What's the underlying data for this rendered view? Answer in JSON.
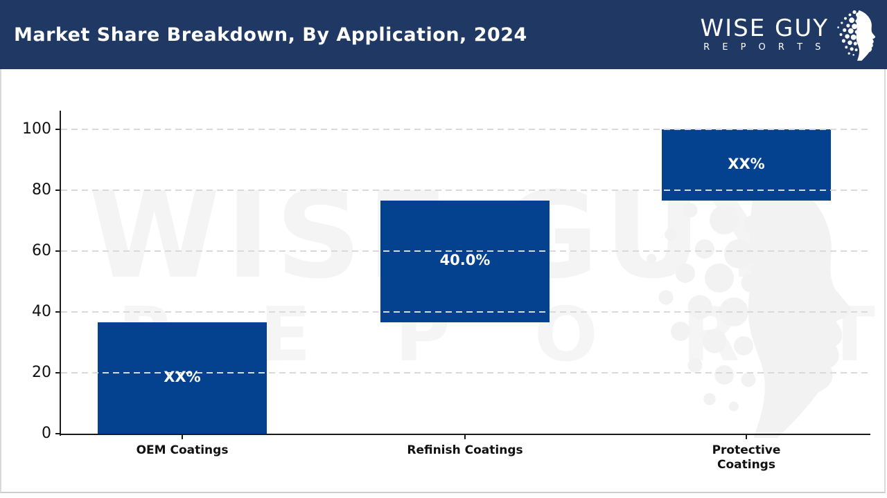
{
  "header": {
    "title": "Market Share Breakdown, By Application, 2024"
  },
  "logo": {
    "line1": "WISE GUY",
    "line2": "R E P O R T S"
  },
  "watermark": {
    "line1": "WISE GUY",
    "line2": "R E P O R T S"
  },
  "chart_data": {
    "type": "bar",
    "subtype": "waterfall",
    "title": "Market Share Breakdown, By Application, 2024",
    "categories": [
      "OEM Coatings",
      "Refinish Coatings",
      "Protective\nCoatings"
    ],
    "segments": [
      {
        "category": "OEM Coatings",
        "start": 0,
        "end": 36.5,
        "value": 36.5,
        "label": "XX%"
      },
      {
        "category": "Refinish Coatings",
        "start": 36.5,
        "end": 76.5,
        "value": 40.0,
        "label": "40.0%"
      },
      {
        "category": "Protective Coatings",
        "start": 76.5,
        "end": 100,
        "value": 23.5,
        "label": "XX%"
      }
    ],
    "yticks": [
      0,
      20,
      40,
      60,
      80,
      100
    ],
    "ylim": [
      0,
      106
    ],
    "xlabel": "",
    "ylabel": "",
    "grid": "horizontal-dashed",
    "legend": "none",
    "bar_color": "#04428F",
    "value_label_color": "#ffffff",
    "grid_color": "#d9d9d9",
    "axis_color": "#1a1a1a",
    "header_bg_color": "#1F3864"
  }
}
